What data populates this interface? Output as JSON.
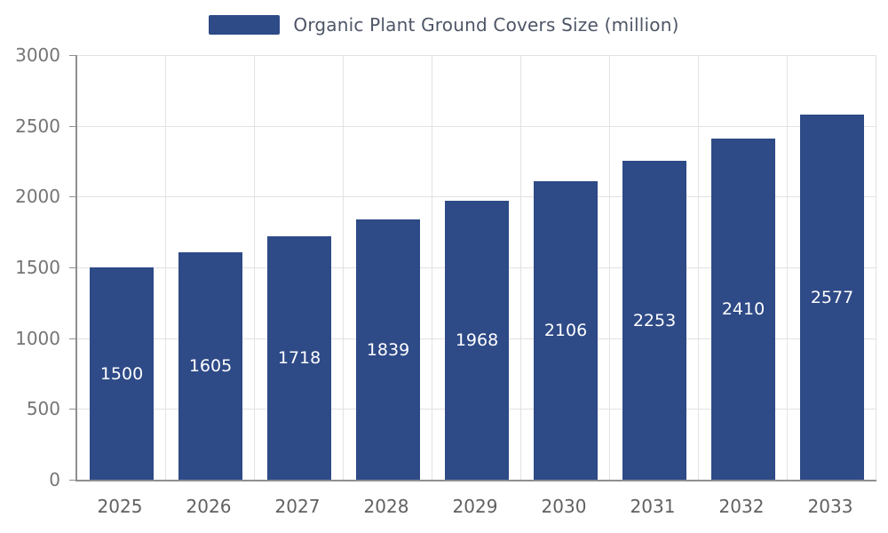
{
  "chart_data": {
    "type": "bar",
    "title": "Organic Plant Ground Covers Size (million)",
    "categories": [
      "2025",
      "2026",
      "2027",
      "2028",
      "2029",
      "2030",
      "2031",
      "2032",
      "2033"
    ],
    "values": [
      1500,
      1605,
      1718,
      1839,
      1968,
      2106,
      2253,
      2410,
      2577
    ],
    "xlabel": "",
    "ylabel": "",
    "ylim": [
      0,
      3000
    ],
    "yticks": [
      0,
      500,
      1000,
      1500,
      2000,
      2500,
      3000
    ],
    "grid": true,
    "legend_position": "top",
    "bar_color": "#2E4A87",
    "value_label_color": "#ffffff",
    "axis_color": "#8f8f8f",
    "gridline_color": "#e2e2e2",
    "tick_label_color": "#757575"
  }
}
